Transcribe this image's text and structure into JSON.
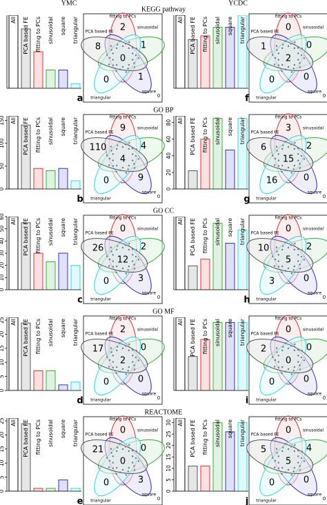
{
  "column_labels": [
    "YMC",
    "YCDC"
  ],
  "row_titles": [
    "KEGG pathway",
    "GO BP",
    "GO CC",
    "GO MF",
    "REACTOME"
  ],
  "chart_data": [
    {
      "type": "bar",
      "panel_label": "a",
      "categories": [
        "All",
        "PCA based FE",
        "fitting to PCs",
        "sinusoidal",
        "square",
        "triangular"
      ],
      "values": [
        16,
        13,
        8,
        4,
        4,
        1
      ],
      "colors": [
        "#000000",
        "#555555",
        "#e03030",
        "#30b030",
        "#3030c0",
        "#30d8e8"
      ],
      "ylim": [
        0,
        16
      ]
    },
    {
      "type": "venn",
      "set_labels": [
        "fitting to PCs",
        "sinusoidal",
        "square",
        "triangular",
        "PCA based FE"
      ],
      "values": [
        2,
        1,
        8,
        0,
        0,
        1,
        0
      ]
    },
    {
      "type": "bar",
      "panel_label": "f",
      "categories": [
        "All",
        "PCA based FE",
        "fitting to PCs",
        "sinusoidal",
        "square",
        "triangular"
      ],
      "values": [
        6,
        4,
        4.3,
        5,
        5,
        6
      ],
      "colors": [
        "#000000",
        "#555555",
        "#e03030",
        "#30b030",
        "#3030c0",
        "#30d8e8"
      ],
      "ylim": [
        0,
        6
      ]
    },
    {
      "type": "venn",
      "set_labels": [
        "fitting to PCs",
        "sinusoidal",
        "square",
        "triangular",
        "PCA based FE"
      ],
      "values": [
        0,
        0,
        1,
        2,
        0,
        0,
        0
      ]
    },
    {
      "type": "bar",
      "panel_label": "b",
      "categories": [
        "All",
        "PCA based FE",
        "fitting to PCs",
        "sinusoidal",
        "square",
        "triangular"
      ],
      "values": [
        160,
        140,
        45,
        40,
        45,
        18
      ],
      "colors": [
        "#000000",
        "#555555",
        "#e03030",
        "#30b030",
        "#3030c0",
        "#30d8e8"
      ],
      "ylim": [
        0,
        160
      ],
      "yticks": [
        0,
        50,
        100,
        150
      ]
    },
    {
      "type": "venn",
      "set_labels": [
        "fitting to PCs",
        "sinusoidal",
        "square",
        "triangular",
        "PCA based FE"
      ],
      "values": [
        9,
        4,
        110,
        4,
        0,
        9,
        0
      ]
    },
    {
      "type": "bar",
      "panel_label": "g",
      "categories": [
        "All",
        "PCA based FE",
        "fitting to PCs",
        "sinusoidal",
        "square",
        "triangular"
      ],
      "values": [
        88,
        22,
        60,
        85,
        47,
        85
      ],
      "colors": [
        "#000000",
        "#555555",
        "#e03030",
        "#30b030",
        "#3030c0",
        "#30d8e8"
      ],
      "ylim": [
        0,
        88
      ],
      "yticks": [
        0,
        20,
        40,
        60,
        80
      ]
    },
    {
      "type": "venn",
      "set_labels": [
        "fitting to PCs",
        "sinusoidal",
        "square",
        "triangular",
        "PCA based FE"
      ],
      "values": [
        3,
        2,
        6,
        15,
        16,
        0,
        0
      ]
    },
    {
      "type": "bar",
      "panel_label": "c",
      "categories": [
        "All",
        "PCA based FE",
        "fitting to PCs",
        "sinusoidal",
        "square",
        "triangular"
      ],
      "values": [
        60,
        55,
        30,
        23,
        30,
        20
      ],
      "colors": [
        "#000000",
        "#555555",
        "#e03030",
        "#30b030",
        "#3030c0",
        "#30d8e8"
      ],
      "ylim": [
        0,
        60
      ],
      "yticks": [
        0,
        10,
        20,
        30,
        40,
        50,
        60
      ]
    },
    {
      "type": "venn",
      "set_labels": [
        "fitting to PCs",
        "sinusoidal",
        "square",
        "triangular",
        "PCA based FE"
      ],
      "values": [
        0,
        2,
        26,
        12,
        0,
        3,
        0
      ]
    },
    {
      "type": "bar",
      "panel_label": "h",
      "categories": [
        "All",
        "PCA based FE",
        "fitting to PCs",
        "sinusoidal",
        "square",
        "triangular"
      ],
      "values": [
        55,
        18,
        23,
        50,
        35,
        45
      ],
      "colors": [
        "#000000",
        "#555555",
        "#e03030",
        "#30b030",
        "#3030c0",
        "#30d8e8"
      ],
      "ylim": [
        0,
        55
      ]
    },
    {
      "type": "venn",
      "set_labels": [
        "fitting to PCs",
        "sinusoidal",
        "square",
        "triangular",
        "PCA based FE"
      ],
      "values": [
        0,
        2,
        10,
        5,
        3,
        0,
        0
      ]
    },
    {
      "type": "bar",
      "panel_label": "d",
      "categories": [
        "All",
        "PCA based FE",
        "fitting to PCs",
        "sinusoidal",
        "square",
        "triangular"
      ],
      "values": [
        26,
        24,
        7,
        7,
        2,
        3
      ],
      "colors": [
        "#000000",
        "#555555",
        "#e03030",
        "#30b030",
        "#3030c0",
        "#30d8e8"
      ],
      "ylim": [
        0,
        26
      ],
      "yticks": [
        0,
        5,
        10,
        15,
        20,
        25
      ]
    },
    {
      "type": "venn",
      "set_labels": [
        "fitting to PCs",
        "sinusoidal",
        "square",
        "triangular",
        "PCA based FE"
      ],
      "values": [
        2,
        0,
        17,
        2,
        0,
        0,
        0
      ]
    },
    {
      "type": "bar",
      "panel_label": "i",
      "categories": [
        "All",
        "PCA based FE",
        "fitting to PCs",
        "sinusoidal",
        "square",
        "triangular"
      ],
      "values": [
        4.3,
        2,
        3,
        4,
        4,
        4
      ],
      "colors": [
        "#000000",
        "#555555",
        "#e03030",
        "#30b030",
        "#3030c0",
        "#30d8e8"
      ],
      "ylim": [
        0,
        4.3
      ]
    },
    {
      "type": "venn",
      "set_labels": [
        "fitting to PCs",
        "sinusoidal",
        "square",
        "triangular",
        "PCA based FE"
      ],
      "values": [
        0,
        0,
        2,
        0,
        0,
        0,
        0
      ]
    },
    {
      "type": "bar",
      "panel_label": "e",
      "categories": [
        "All",
        "PCA based FE",
        "fitting to PCs",
        "sinusoidal",
        "square",
        "triangular"
      ],
      "values": [
        26,
        24,
        1,
        1,
        4,
        1
      ],
      "colors": [
        "#000000",
        "#555555",
        "#e03030",
        "#30b030",
        "#3030c0",
        "#30d8e8"
      ],
      "ylim": [
        0,
        26
      ],
      "yticks": [
        0,
        5,
        10,
        15,
        20,
        25
      ]
    },
    {
      "type": "venn",
      "set_labels": [
        "fitting to PCs",
        "sinusoidal",
        "square",
        "triangular",
        "PCA based FE"
      ],
      "values": [
        0,
        0,
        21,
        0,
        0,
        3,
        0
      ]
    },
    {
      "type": "bar",
      "panel_label": "j",
      "categories": [
        "All",
        "PCA based FE",
        "fitting to PCs",
        "sinusoidal",
        "square",
        "triangular"
      ],
      "values": [
        32,
        11,
        11,
        30,
        26,
        30
      ],
      "colors": [
        "#000000",
        "#555555",
        "#e03030",
        "#30b030",
        "#3030c0",
        "#30d8e8"
      ],
      "ylim": [
        0,
        32
      ],
      "yticks": [
        0,
        5,
        10,
        15,
        20,
        25,
        30
      ]
    },
    {
      "type": "venn",
      "set_labels": [
        "fitting to PCs",
        "sinusoidal",
        "square",
        "triangular",
        "PCA based FE"
      ],
      "values": [
        0,
        4,
        5,
        5,
        0,
        0,
        0
      ]
    }
  ]
}
